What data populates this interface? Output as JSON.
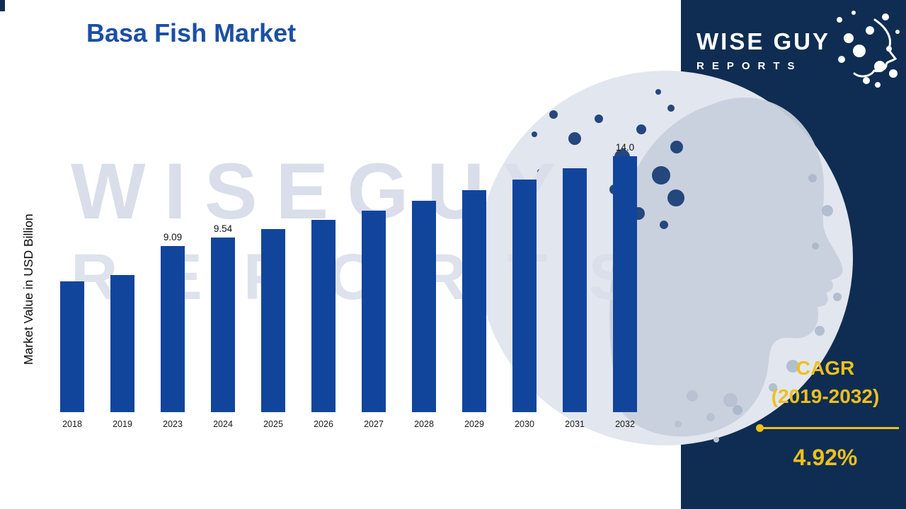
{
  "chart_data": {
    "type": "bar",
    "title": "Basa Fish Market",
    "ylabel": "Market Value in USD Billion",
    "xlabel": "",
    "categories": [
      "2018",
      "2019",
      "2023",
      "2024",
      "2025",
      "2026",
      "2027",
      "2028",
      "2029",
      "2030",
      "2031",
      "2032"
    ],
    "values": [
      7.15,
      7.5,
      9.09,
      9.54,
      10.01,
      10.5,
      11.02,
      11.56,
      12.13,
      12.73,
      13.35,
      14.0
    ],
    "data_labels": [
      "",
      "",
      "9.09",
      "9.54",
      "",
      "",
      "",
      "",
      "",
      "",
      "",
      "14.0"
    ],
    "ylim": [
      0,
      15
    ],
    "grid": false,
    "legend": "none",
    "bar_color": "#11459c"
  },
  "brand": {
    "logo_name": "WISE GUY",
    "logo_sub": "REPORTS",
    "watermark_line1": "WISEGUY",
    "watermark_line2": "REPORTS"
  },
  "cagr": {
    "label": "CAGR",
    "range": "(2019-2032)",
    "value": "4.92%"
  },
  "colors": {
    "title_blue": "#1b4fa5",
    "bar_blue": "#11459c",
    "panel_navy": "#0f2d52",
    "accent_gold": "#eec01d",
    "circle_gray": "#e2e6ee",
    "watermark_gray": "#d9deea"
  }
}
